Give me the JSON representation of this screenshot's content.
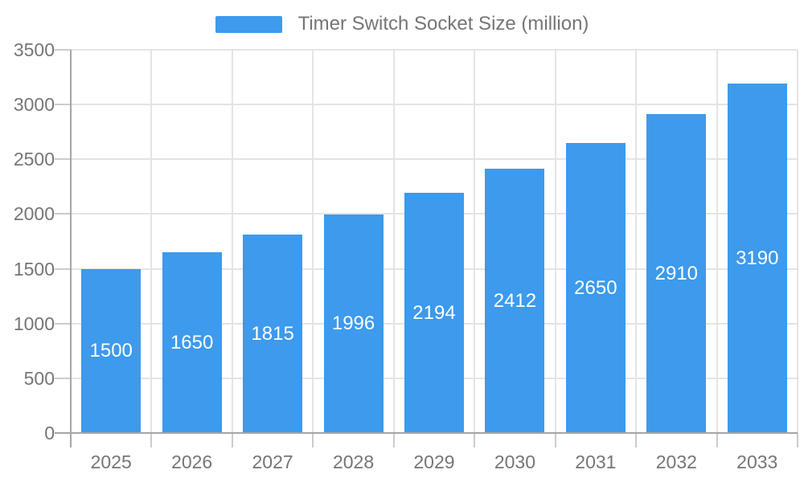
{
  "legend": {
    "label": "Timer Switch Socket Size (million)"
  },
  "colors": {
    "bar": "#3d9aec",
    "bar_label": "#ffffff",
    "axis_label": "#757575",
    "grid_line": "#e4e4e4",
    "axis_line": "#a5a5a5",
    "tick_line": "#cccccc",
    "background": "#ffffff"
  },
  "chart_data": {
    "type": "bar",
    "title": "Timer Switch Socket Size (million)",
    "categories": [
      "2025",
      "2026",
      "2027",
      "2028",
      "2029",
      "2030",
      "2031",
      "2032",
      "2033"
    ],
    "values": [
      1500,
      1650,
      1815,
      1996,
      2194,
      2412,
      2650,
      2910,
      3190
    ],
    "xlabel": "",
    "ylabel": "",
    "ylim": [
      0,
      3500
    ],
    "yticks": [
      0,
      500,
      1000,
      1500,
      2000,
      2500,
      3000,
      3500
    ],
    "grid": true,
    "legend_position": "top",
    "bar_label_position": "inside-center"
  }
}
